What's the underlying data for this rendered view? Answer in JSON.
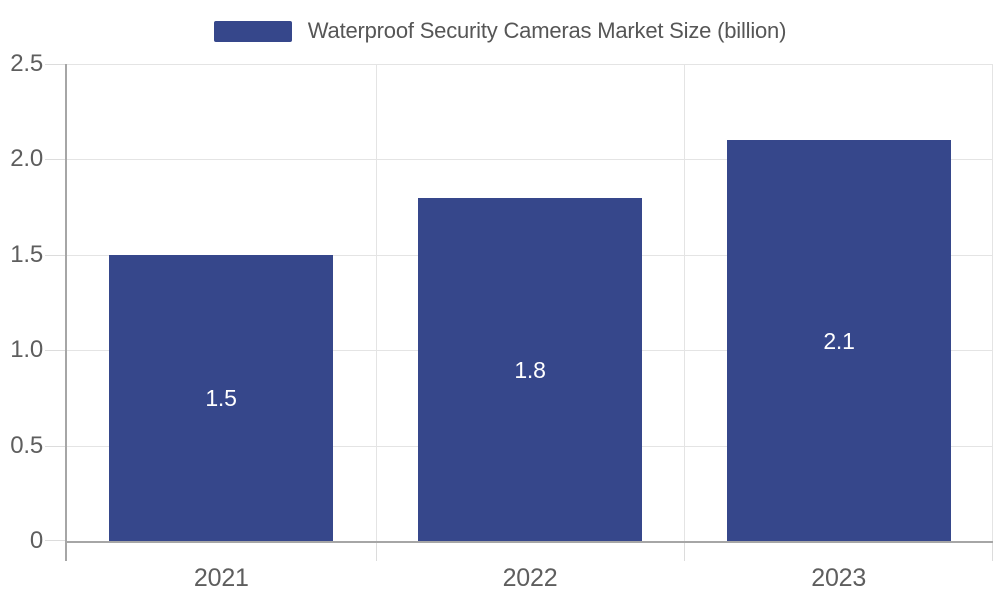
{
  "chart_data": {
    "type": "bar",
    "title": "",
    "legend": {
      "position": "top-center",
      "items": [
        "Waterproof Security Cameras Market Size (billion)"
      ]
    },
    "categories": [
      "2021",
      "2022",
      "2023"
    ],
    "series": [
      {
        "name": "Waterproof Security Cameras Market Size (billion)",
        "values": [
          1.5,
          1.8,
          2.1
        ],
        "labels": [
          "1.5",
          "1.8",
          "2.1"
        ]
      }
    ],
    "ylim": [
      0,
      2.5
    ],
    "yticks": {
      "values": [
        0,
        0.5,
        1,
        1.5,
        2,
        2.5
      ],
      "labels": [
        "0",
        "0.5",
        "1.0",
        "1.5",
        "2.0",
        "2.5"
      ]
    },
    "grid": true,
    "colors": {
      "bar": "#36478B",
      "bar_label": "#FFFFFF",
      "grid_line": "#E4E4E4",
      "axis_line": "#A6A6A6",
      "tick_line": "#DCDCDC",
      "tick_text": "#5E5E5E",
      "legend_text": "#565656",
      "background": "#FFFFFF"
    }
  }
}
